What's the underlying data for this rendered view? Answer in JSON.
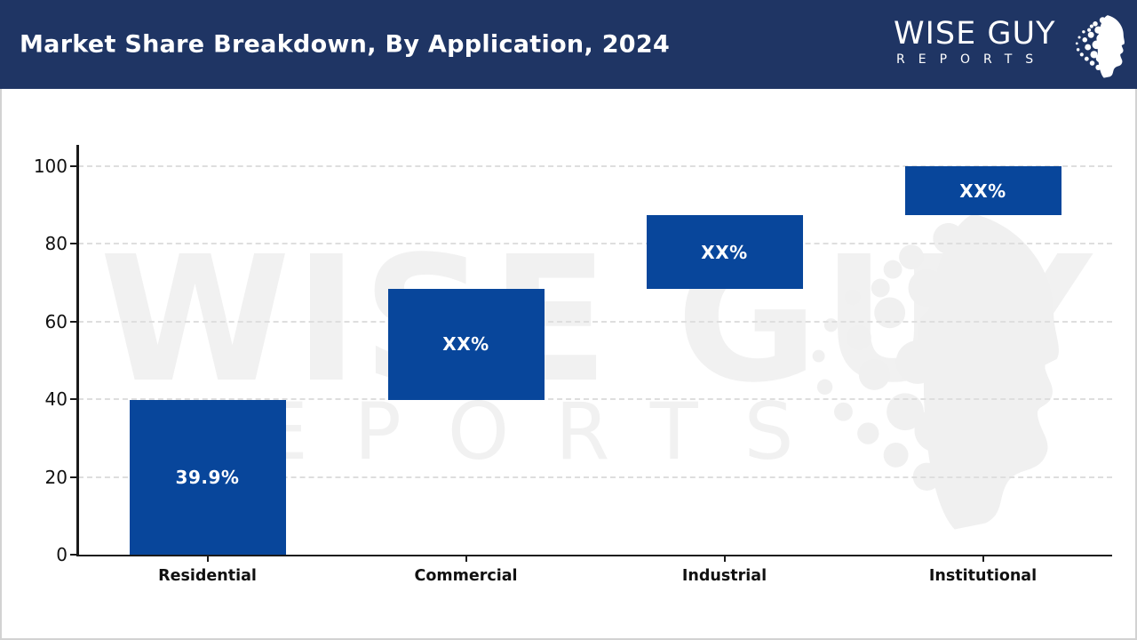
{
  "header": {
    "title": "Market Share Breakdown, By Application, 2024",
    "background_color": "#1f3564",
    "logo": {
      "line1": "WISE GUY",
      "line2": "REPORTS"
    }
  },
  "watermark": {
    "line1": "WISE GUY",
    "line2": "REPORTS"
  },
  "chart_data": {
    "type": "bar",
    "subtype": "waterfall",
    "title": "Market Share Breakdown, By Application, 2024",
    "categories": [
      "Residential",
      "Commercial",
      "Industrial",
      "Institutional"
    ],
    "segments": [
      {
        "category": "Residential",
        "start": 0,
        "end": 39.9,
        "label": "39.9%"
      },
      {
        "category": "Commercial",
        "start": 39.9,
        "end": 68.4,
        "label": "XX%"
      },
      {
        "category": "Industrial",
        "start": 68.4,
        "end": 87.4,
        "label": "XX%"
      },
      {
        "category": "Institutional",
        "start": 87.4,
        "end": 100,
        "label": "XX%"
      }
    ],
    "yticks": [
      0,
      20,
      40,
      60,
      80,
      100
    ],
    "ylim": [
      0,
      105
    ],
    "xlabel": "",
    "ylabel": "",
    "bar_color": "#08469b",
    "bar_label_color": "#ffffff",
    "grid": "horizontal-dashed",
    "grid_color": "#dedede",
    "axis_color": "#1a1a1a",
    "legend": "none"
  }
}
